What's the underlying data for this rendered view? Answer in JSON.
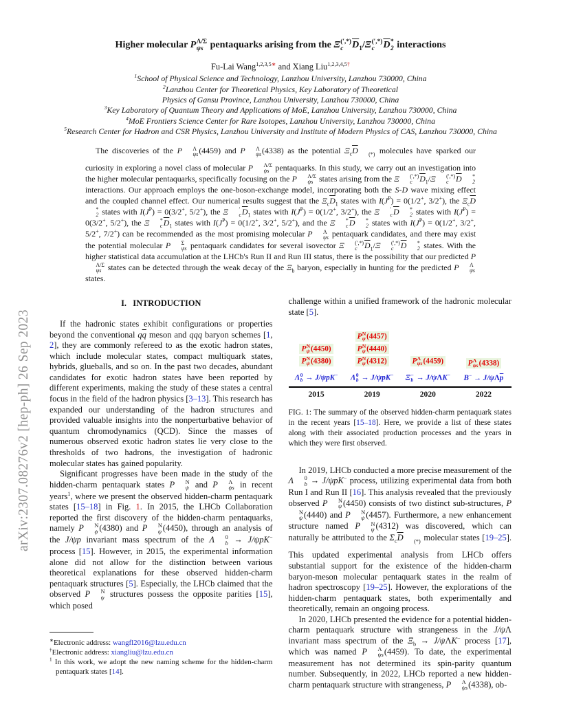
{
  "watermark": "arXiv:2307.08276v2  [hep-ph]  26 Sep 2023",
  "header": {
    "title": "Higher molecular {{st:P|Λ/Σ|ψs}} pentaquarks arising from the {{st:Ξ|(′,*)|c}}{{ol:D}}{{sub:1}}/{{st:Ξ|(′,*)|c}}{{st:{{ol:D}}|*|2}} interactions",
    "authors": "Fu-Lai Wang{{sup:1,2,3,5{{ref:∗}}}} and Xiang Liu{{sup:1,2,3,4,5{{ref:†}}}}",
    "affiliations": [
      "{{sup:1}}School of Physical Science and Technology, Lanzhou University, Lanzhou 730000, China",
      "{{sup:2}}Lanzhou Center for Theoretical Physics, Key Laboratory of Theoretical",
      "Physics of Gansu Province, Lanzhou University, Lanzhou 730000, China",
      "{{sup:3}}Key Laboratory of Quantum Theory and Applications of MoE, Lanzhou University, Lanzhou 730000, China",
      "{{sup:4}}MoE Frontiers Science Center for Rare Isotopes, Lanzhou University, Lanzhou 730000, China",
      "{{sup:5}}Research Center for Hadron and CSR Physics, Lanzhou University and Institute of Modern Physics of CAS, Lanzhou 730000, China"
    ]
  },
  "abstract": "The discoveries of the {{st:P|Λ|ψs}}(4459) and {{st:P|Λ|ψs}}(4338) as the potential {{i:Ξ}}{{sub:c}}{{st:{{ol:D}}|(*)|}} molecules have sparked our curiosity in exploring a novel class of molecular {{st:P|Λ/Σ|ψs}} pentaquarks. In this study, we carry out an investigation into the higher molecular pentaquarks, specifically focusing on the {{st:P|Λ/Σ|ψs}} states arising from the {{st:Ξ|(′,*)|c}}{{ol:D}}{{sub:1}}/{{st:Ξ|(′,*)|c}}{{st:{{ol:D}}|*|2}} interactions. Our approach employs the one-boson-exchange model, incorporating both the {{i:S}}-{{i:D}} wave mixing effect and the coupled channel effect. Our numerical results suggest that the {{i:Ξ}}{{sub:c}}{{ol:D}}{{sub:1}} states with {{i:I}}({{i:J}}{{sup:P}}) = 0(1/2{{sup:+}}, 3/2{{sup:+}}), the {{i:Ξ}}{{sub:c}}{{st:{{ol:D}}|*|2}} states with {{i:I}}({{i:J}}{{sup:P}}) = 0(3/2{{sup:+}}, 5/2{{sup:+}}), the {{st:Ξ|′|c}}{{ol:D}}{{sub:1}} states with {{i:I}}({{i:J}}{{sup:P}}) = 0(1/2{{sup:+}}, 3/2{{sup:+}}), the {{st:Ξ|′|c}}{{st:{{ol:D}}|*|2}} states with {{i:I}}({{i:J}}{{sup:P}}) = 0(3/2{{sup:+}}, 5/2{{sup:+}}), the {{st:Ξ|*|c}}{{ol:D}}{{sub:1}} states with {{i:I}}({{i:J}}{{sup:P}}) = 0(1/2{{sup:+}}, 3/2{{sup:+}}, 5/2{{sup:+}}), and the {{st:Ξ|*|c}}{{st:{{ol:D}}|*|2}} states with {{i:I}}({{i:J}}{{sup:P}}) = 0(1/2{{sup:+}}, 3/2{{sup:+}}, 5/2{{sup:+}}, 7/2{{sup:+}}) can be recommended as the most promising molecular {{st:P|Λ|ψs}} pentaquark candidates, and there may exist the potential molecular {{st:P|Σ|ψs}} pentaquark candidates for several isovector {{st:Ξ|(′,*)|c}}{{ol:D}}{{sub:1}}/{{st:Ξ|(′,*)|c}}{{st:{{ol:D}}|*|2}} states. With the higher statistical data accumulation at the LHCb's Run II and Run III status, there is the possibility that our predicted {{st:P|Λ/Σ|ψs}} states can be detected through the weak decay of the {{i:Ξ}}{{sub:b}} baryon, especially in hunting for the predicted {{st:P|Λ|ψs}} states.",
  "left_column": {
    "section_heading": "I.   INTRODUCTION",
    "paragraph_1": "If the hadronic states exhibit configurations or properties beyond the conventional {{i:q}}{{ol:q}} meson and {{i:qqq}} baryon schemes [{{cite:1}}, {{cite:2}}], they are commonly refereed to as the exotic hadron states, which include molecular states, compact multiquark states, hybrids, glueballs, and so on. In the past two decades, abundant candidates for exotic hadron states have been reported by different experiments, making the study of these states a central focus in the field of the hadron physics [{{cite:3–13}}]. This research has expanded our understanding of the hadron structures and provided valuable insights into the nonperturbative behavior of quantum chromodynamics (QCD). Since the masses of numerous observed exotic hadron states lie very close to the thresholds of two hadrons, the investigation of hadronic molecular states has gained popularity.",
    "paragraph_2": "Significant progresses have been made in the study of the hidden-charm pentaquark states {{st:P|N|ψ}} and {{st:P|Λ|ψs}} in recent years{{sup:1}}, where we present the observed hidden-charm pentaquark states [{{cite:15–18}}] in Fig. {{ref:1}}. In 2015, the LHCb Collaboration reported the first discovery of the hidden-charm pentaquarks, namely {{st:P|N|ψ}}(4380) and {{st:P|N|ψ}}(4450), through an analysis of the {{i:J/ψp}} invariant mass spectrum of the {{st:Λ|0|b}} → {{i:J/ψpK}}{{sup:−}} process [{{cite:15}}]. However, in 2015, the experimental information alone did not allow for the distinction between various theoretical explanations for these observed hidden-charm pentaquark structures [{{cite:5}}]. Especially, the LHCb claimed that the observed {{st:P|N|ψ}} structures possess the opposite parities [{{cite:15}}], which posed",
    "footnotes": [
      "{{sup:∗}}Electronic address: {{cite:wangfl2016@lzu.edu.cn}}",
      "{{sup:†}}Electronic address: {{cite:xiangliu@lzu.edu.cn}}",
      "{{sup:1}} In this work, we adopt the new naming scheme for the hidden-charm pentaquark states [{{cite:14}}]."
    ]
  },
  "right_column": {
    "paragraph_0": "challenge within a unified framework of the hadronic molecular state [{{cite:5}}].",
    "figure": {
      "columns": [
        {
          "states": [
            "{{st:P|N|ψ}}(4450)",
            "{{st:P|N|ψ}}(4380)"
          ],
          "process": "{{st:Λ|0|b}} → {{i:J/ψpK}}{{sup:−}}",
          "year": "2015"
        },
        {
          "states": [
            "{{st:P|N|ψ}}(4457)",
            "{{st:P|N|ψ}}(4440)",
            "{{st:P|N|ψ}}(4312)"
          ],
          "process": "{{st:Λ|0|b}} → {{i:J/ψpK}}{{sup:−}}",
          "year": "2019"
        },
        {
          "states": [
            "{{st:P|Λ|ψs}}(4459)"
          ],
          "process": "{{st:Ξ|−|b}} → {{i:J/ψ}}Λ{{i:K}}{{sup:−}}",
          "year": "2020"
        },
        {
          "states": [
            "{{st:P|Λ|ψs}}(4338)"
          ],
          "process": "{{i:B}}{{sup:−}} → {{i:J/ψ}}Λ{{ol:p}}",
          "year": "2022"
        }
      ],
      "caption": "FIG. 1: The summary of the observed hidden-charm pentaquark states in the recent years [{{cite:15–18}}]. Here, we provide a list of these states along with their associated production processes and the years in which they were first observed."
    },
    "paragraph_1": "In 2019, LHCb conducted a more precise measurement of the {{st:Λ|0|b}} → {{i:J/ψpK}}{{sup:−}} process, utilizing experimental data from both Run I and Run II [{{cite:16}}]. This analysis revealed that the previously observed {{st:P|N|ψ}}(4450) consists of two distinct sub-structures, {{st:P|N|ψ}}(4440) and {{st:P|N|ψ}}(4457). Furthermore, a new enhancement structure named {{st:P|N|ψ}}(4312) was discovered, which can naturally be attributed to the {{i:Σ}}{{sub:c}}{{st:{{ol:D}}|(*)|}} molecular states [{{cite:19–25}}]. This updated experimental analysis from LHCb offers substantial support for the existence of the hidden-charm baryon-meson molecular pentaquark states in the realm of hadron spectroscopy [{{cite:19–25}}]. However, the explorations of the hidden-charm pentaquark states, both experimentally and theoretically, remain an ongoing process.",
    "paragraph_2": "In 2020, LHCb presented the evidence for a potential hidden-charm pentaquark structure with strangeness in the {{i:J/ψ}}Λ invariant mass spectrum of the {{i:Ξ}}{{sub:b}} → {{i:J/ψ}}Λ{{i:K}}{{sup:−}} process [{{cite:17}}], which was named {{st:P|Λ|ψs}}(4459). To date, the experimental measurement has not determined its spin-parity quantum number. Subsequently, in 2022, LHCb reported a new hidden-charm pentaquark structure with strangeness, {{st:P|Λ|ψs}}(4338), ob-"
  }
}
